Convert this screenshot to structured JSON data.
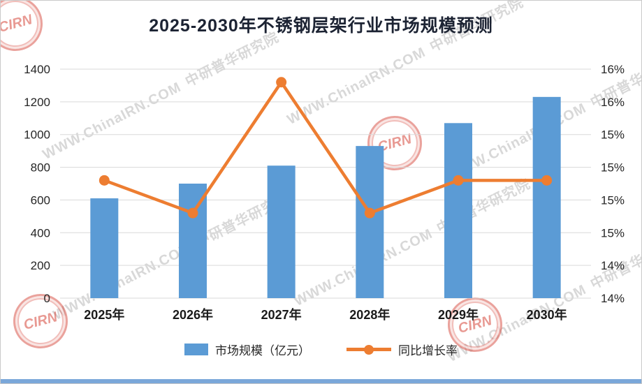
{
  "title": "2025-2030年不锈钢层架行业市场规模预测",
  "watermark": {
    "url_text": "WWW.ChinaIRN.COM",
    "cn_text": "中研普华研究院",
    "logo_text": "CIRN"
  },
  "chart_data": {
    "type": "combo",
    "categories": [
      "2025年",
      "2026年",
      "2027年",
      "2028年",
      "2029年",
      "2030年"
    ],
    "series": [
      {
        "name": "市场规模（亿元）",
        "type": "bar",
        "axis": "left",
        "color": "#5B9BD5",
        "values": [
          610,
          700,
          810,
          930,
          1070,
          1230
        ]
      },
      {
        "name": "同比增长率",
        "type": "line",
        "axis": "right",
        "color": "#ED7D31",
        "values": [
          14.9,
          14.65,
          15.65,
          14.65,
          14.9,
          14.9
        ]
      }
    ],
    "left_axis": {
      "min": 0,
      "max": 1400,
      "step": 200,
      "tick_labels": [
        "1400",
        "1200",
        "1000",
        "800",
        "600",
        "400",
        "200",
        "0"
      ]
    },
    "right_axis": {
      "min": 14,
      "max": 15.75,
      "step": 0.25,
      "tick_labels": [
        "16%",
        "16%",
        "15%",
        "15%",
        "15%",
        "15%",
        "14%",
        "14%"
      ]
    },
    "grid": true,
    "legend_position": "bottom"
  }
}
